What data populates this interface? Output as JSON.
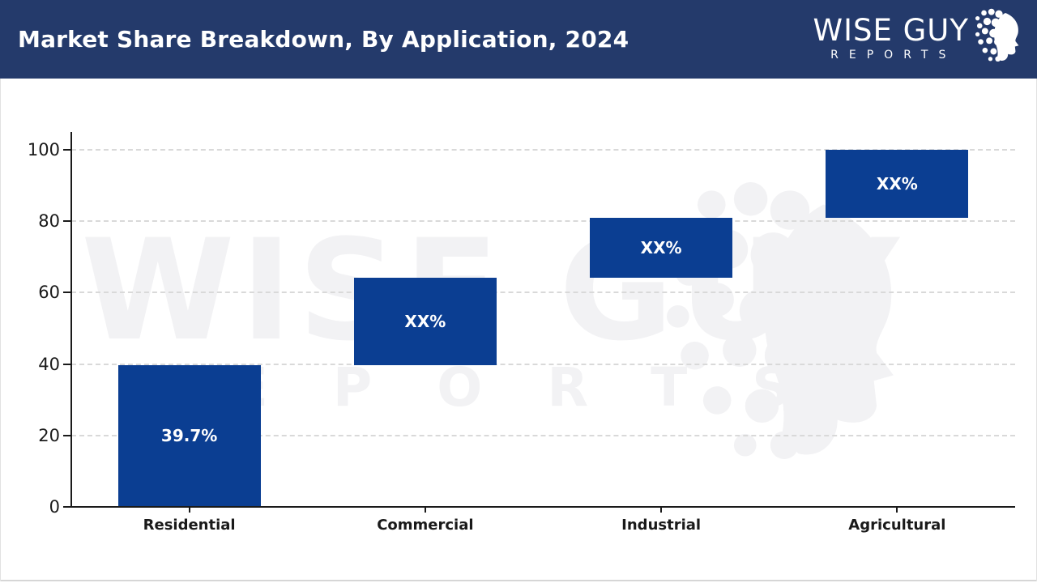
{
  "header": {
    "title": "Market Share Breakdown, By Application, 2024",
    "logo": {
      "line1": "WISE GUY",
      "line2": "REPORTS"
    }
  },
  "watermark": {
    "line1": "WISE GUY",
    "line2": "REPORTS"
  },
  "chart_data": {
    "type": "bar",
    "subtype": "waterfall",
    "title": "Market Share Breakdown, By Application, 2024",
    "categories": [
      "Residential",
      "Commercial",
      "Industrial",
      "Agricultural"
    ],
    "segments": [
      {
        "category": "Residential",
        "start": 0,
        "end": 39.7,
        "label": "39.7%"
      },
      {
        "category": "Commercial",
        "start": 39.7,
        "end": 64.2,
        "label": "XX%"
      },
      {
        "category": "Industrial",
        "start": 64.2,
        "end": 81.0,
        "label": "XX%"
      },
      {
        "category": "Agricultural",
        "start": 81.0,
        "end": 100,
        "label": "XX%"
      }
    ],
    "ylim": [
      0,
      100
    ],
    "yticks": [
      0,
      20,
      40,
      60,
      80,
      100
    ],
    "xlabel": "",
    "ylabel": "",
    "grid": "horizontal-dashed",
    "legend": "none",
    "colors": {
      "bar": "#0B3E92",
      "bar_label": "#FFFFFF",
      "grid": "#D9D9D9",
      "axis": "#1A1A1A",
      "header_bg": "#243A6B",
      "watermark": "#F2F2F4"
    }
  }
}
